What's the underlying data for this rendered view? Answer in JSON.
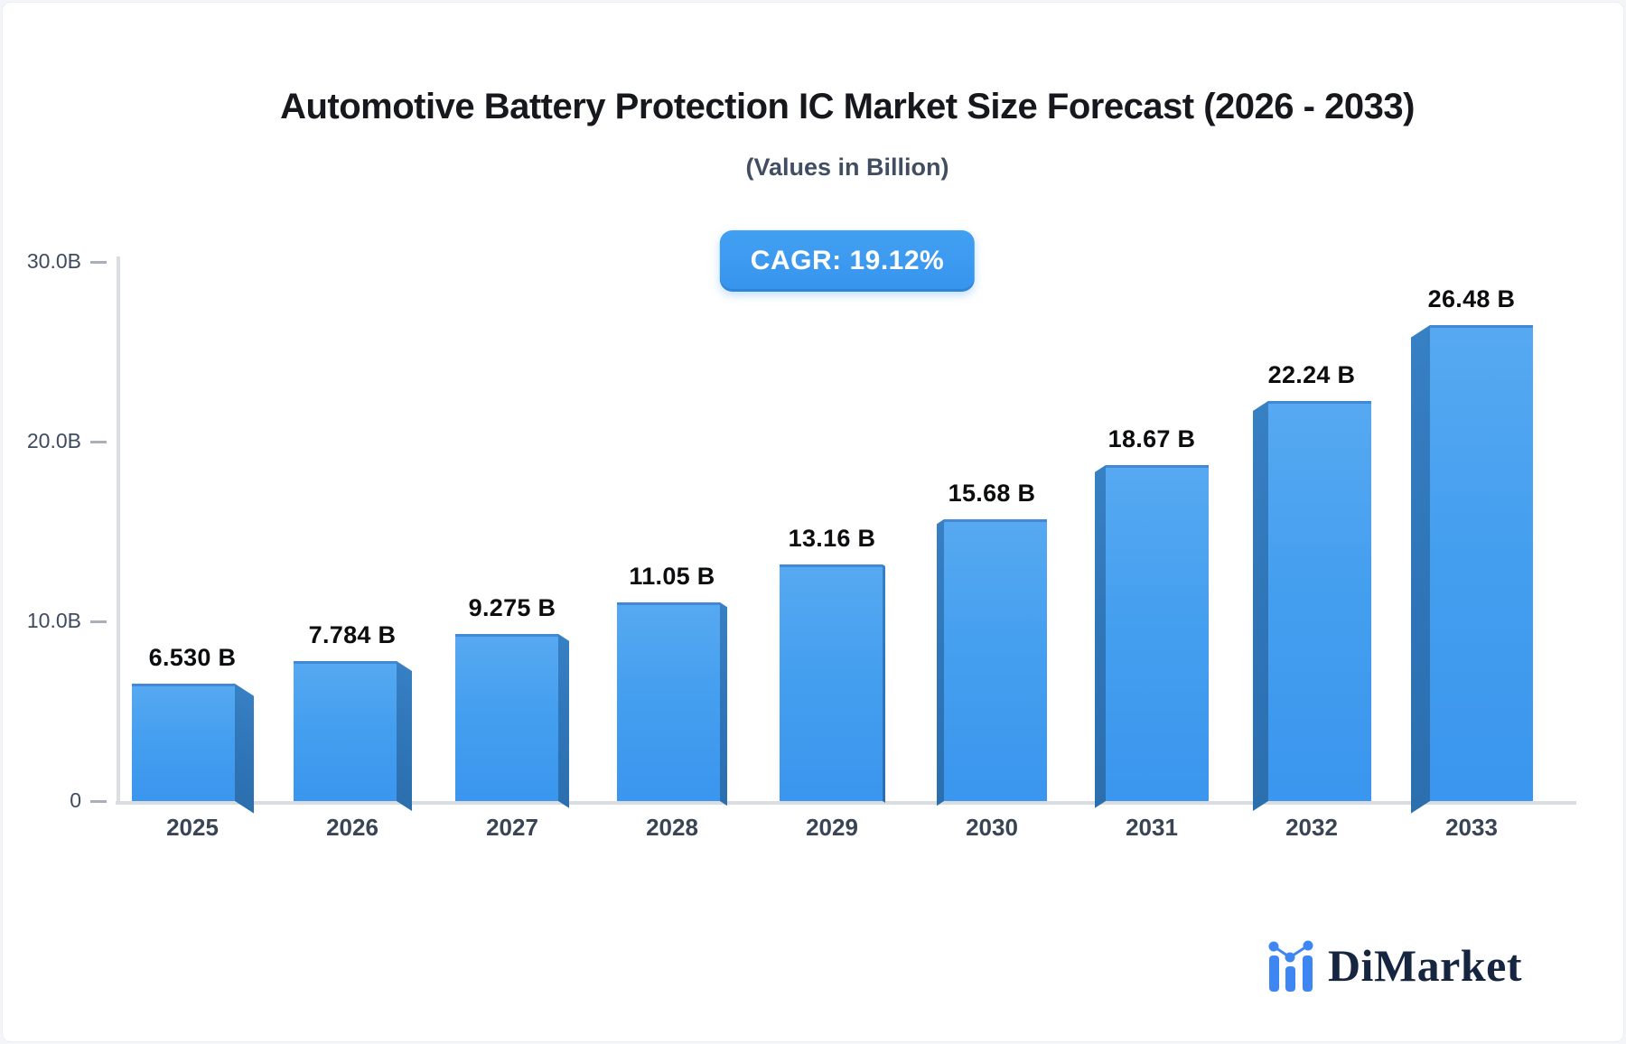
{
  "header": {
    "title": "Automotive Battery Protection IC Market Size Forecast (2026 - 2033)",
    "subtitle": "(Values in Billion)",
    "cagr_badge": "CAGR: 19.12%"
  },
  "chart_data": {
    "type": "bar",
    "title": "Automotive Battery Protection IC Market Size Forecast (2026 - 2033)",
    "subtitle": "(Values in Billion)",
    "categories": [
      "2025",
      "2026",
      "2027",
      "2028",
      "2029",
      "2030",
      "2031",
      "2032",
      "2033"
    ],
    "values": [
      6.53,
      7.784,
      9.275,
      11.05,
      13.16,
      15.68,
      18.67,
      22.24,
      26.48
    ],
    "value_labels": [
      "6.530 B",
      "7.784 B",
      "9.275 B",
      "11.05 B",
      "13.16 B",
      "15.68 B",
      "18.67 B",
      "22.24 B",
      "26.48 B"
    ],
    "unit": "Billion",
    "cagr": "19.12%",
    "xlabel": "",
    "ylabel": "",
    "ylim": [
      0,
      30
    ],
    "y_ticks": [
      {
        "value": 30,
        "label": "30.0B"
      },
      {
        "value": 20,
        "label": "20.0B"
      },
      {
        "value": 10,
        "label": "10.0B"
      },
      {
        "value": 0,
        "label": "0"
      }
    ],
    "grid": false,
    "legend": false,
    "style": "3d-columns-center-perspective"
  },
  "colors": {
    "bar_face_top": "#56a9f1",
    "bar_face_bottom": "#3a96ee",
    "bar_side": "#2e74b7",
    "bar_top_edge": "#4189d4",
    "badge_blue": "#3d9af0",
    "axis_gray": "#d9dce1",
    "tick_gray": "#a9b0bb",
    "y_label_color": "#3e4b60",
    "x_label_color": "#394455",
    "value_label_color": "#0c0d0f",
    "logo_navy": "#162540",
    "logo_blue": "#3e86f1"
  },
  "logo": {
    "text": "DiMarket",
    "icon": "bar-chart-sparkline-icon"
  }
}
